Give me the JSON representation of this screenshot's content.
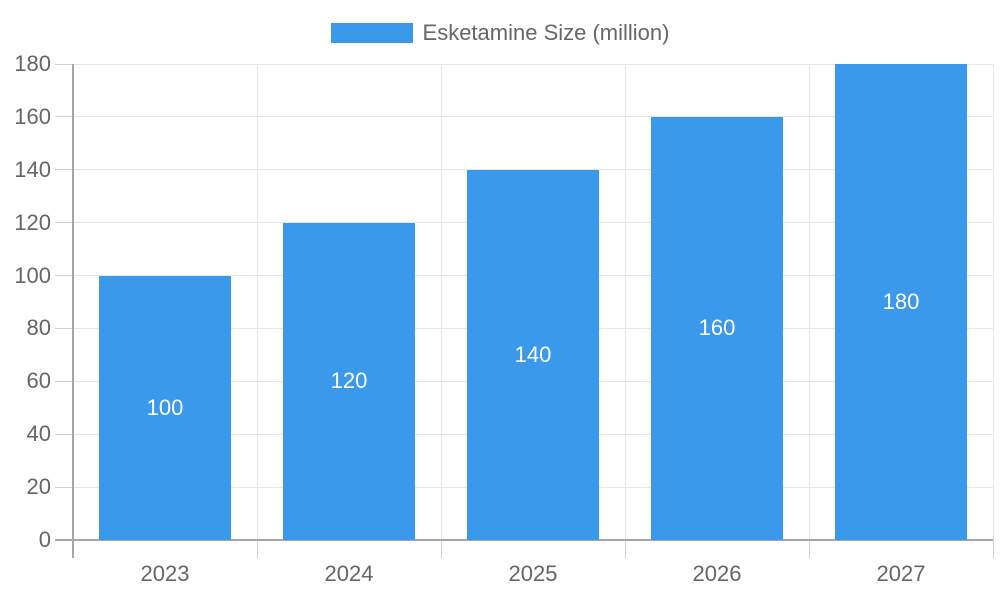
{
  "colors": {
    "bar": "#3b99ec",
    "grid": "#e6e6e6",
    "axis": "#a6a6a6",
    "tick": "#d0d0d0",
    "text": "#666666",
    "bar_label_text": "#ffffff",
    "background": "#ffffff"
  },
  "legend": {
    "position": "top",
    "swatch_color": "#3b99ec"
  },
  "chart_data": {
    "type": "bar",
    "categories": [
      "2023",
      "2024",
      "2025",
      "2026",
      "2027"
    ],
    "series": [
      {
        "name": "Esketamine Size (million)",
        "values": [
          100,
          120,
          140,
          160,
          180
        ]
      }
    ],
    "bar_value_labels_shown": true,
    "ylim": [
      0,
      180
    ],
    "yticks": [
      0,
      20,
      40,
      60,
      80,
      100,
      120,
      140,
      160,
      180
    ],
    "grid": true,
    "legend_position": "top"
  }
}
